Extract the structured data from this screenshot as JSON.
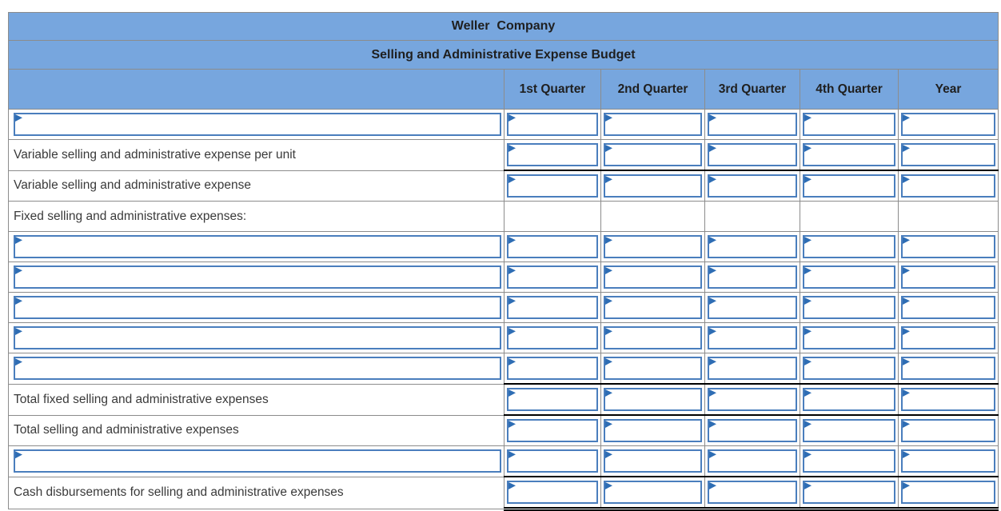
{
  "table": {
    "title": "Weller  Company",
    "subtitle": "Selling and Administrative Expense Budget",
    "columns": [
      "1st Quarter",
      "2nd Quarter",
      "3rd Quarter",
      "4th Quarter",
      "Year"
    ],
    "rows": [
      {
        "label": "",
        "label_input": true,
        "cells_input": true,
        "line_below": "none"
      },
      {
        "label": "Variable selling and administrative expense per unit",
        "label_input": false,
        "cells_input": true,
        "line_below": "single"
      },
      {
        "label": "Variable selling and administrative expense",
        "label_input": false,
        "cells_input": true,
        "line_below": "none"
      },
      {
        "label": "Fixed selling and administrative expenses:",
        "label_input": false,
        "cells_input": false,
        "line_below": "none"
      },
      {
        "label": "",
        "label_input": true,
        "cells_input": true,
        "line_below": "none"
      },
      {
        "label": "",
        "label_input": true,
        "cells_input": true,
        "line_below": "none"
      },
      {
        "label": "",
        "label_input": true,
        "cells_input": true,
        "line_below": "none"
      },
      {
        "label": "",
        "label_input": true,
        "cells_input": true,
        "line_below": "none"
      },
      {
        "label": "",
        "label_input": true,
        "cells_input": true,
        "line_below": "single"
      },
      {
        "label": "Total fixed selling and administrative expenses",
        "label_input": false,
        "cells_input": true,
        "line_below": "single"
      },
      {
        "label": "Total selling and administrative expenses",
        "label_input": false,
        "cells_input": true,
        "line_below": "none"
      },
      {
        "label": "",
        "label_input": true,
        "cells_input": true,
        "line_below": "single"
      },
      {
        "label": "Cash disbursements for selling and administrative expenses",
        "label_input": false,
        "cells_input": true,
        "line_below": "double"
      }
    ],
    "input_cell_state": "empty",
    "colors": {
      "header_bg": "#77a6de",
      "input_border": "#4a7ebd",
      "input_flag": "#2e6db4",
      "grid_line": "#8c8c8c",
      "accounting_rule": "#000000",
      "header_text": "#1f1f1f",
      "body_text": "#3a3a3a"
    }
  }
}
